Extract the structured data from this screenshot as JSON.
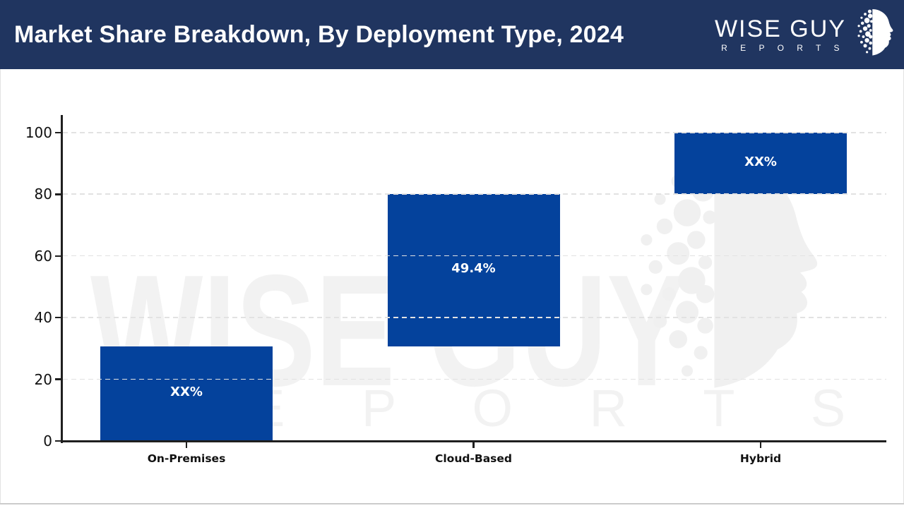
{
  "header": {
    "title": "Market Share Breakdown, By Deployment Type, 2024",
    "logo": {
      "wordmark": "WISE GUY",
      "tagline": "R E P O R T S"
    }
  },
  "watermark": {
    "wordmark": "WISE GUY",
    "tagline": "R E P O R T S"
  },
  "chart_data": {
    "type": "bar",
    "variant": "waterfall",
    "title": "Market Share Breakdown, By Deployment Type, 2024",
    "categories": [
      "On-Premises",
      "Cloud-Based",
      "Hybrid"
    ],
    "bars": [
      {
        "category": "On-Premises",
        "label": "XX%",
        "start": 0,
        "end": 30.6
      },
      {
        "category": "Cloud-Based",
        "label": "49.4%",
        "start": 30.6,
        "end": 80
      },
      {
        "category": "Hybrid",
        "label": "XX%",
        "start": 80,
        "end": 100
      }
    ],
    "yticks": [
      0,
      20,
      40,
      60,
      80,
      100
    ],
    "ylim": [
      0,
      105
    ],
    "xlabel": "",
    "ylabel": "",
    "grid": {
      "axis": "y",
      "style": "dashed",
      "color": "#e2e2e2"
    },
    "legend": null,
    "colors": {
      "bar": "#04429c",
      "bar_label": "#ffffff",
      "axis": "#1f1f1f",
      "tick_label": "#111111",
      "header_background": "#203560",
      "watermark": "#f2f2f2"
    }
  }
}
